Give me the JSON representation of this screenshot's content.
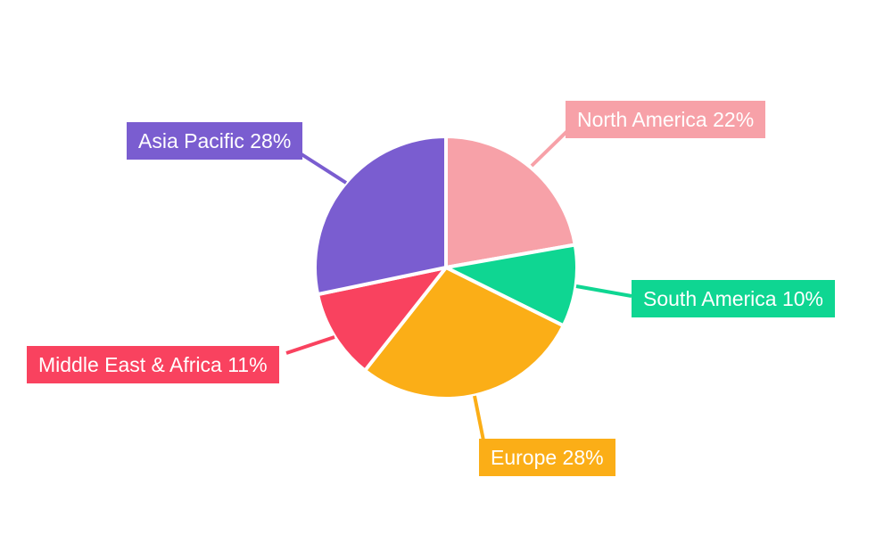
{
  "chart_data": {
    "type": "pie",
    "title": "",
    "unit": "%",
    "direction": "clockwise",
    "start_angle_deg": 0,
    "legend": "none",
    "background": "#FFFFFF",
    "slice_border_color": "#FFFFFF",
    "label_text_color": "#FFFFFF",
    "slices": [
      {
        "label": "North America",
        "value": 22,
        "display_label": "North America 22%",
        "color": "#F7A1A8"
      },
      {
        "label": "South America",
        "value": 10,
        "display_label": "South America 10%",
        "color": "#0FD692"
      },
      {
        "label": "Europe",
        "value": 28,
        "display_label": "Europe 28%",
        "color": "#FBAE17"
      },
      {
        "label": "Middle East & Africa",
        "value": 11,
        "display_label": "Middle East & Africa 11%",
        "color": "#F9425F"
      },
      {
        "label": "Asia Pacific",
        "value": 28,
        "display_label": "Asia Pacific 28%",
        "color": "#7A5DD0"
      }
    ]
  }
}
